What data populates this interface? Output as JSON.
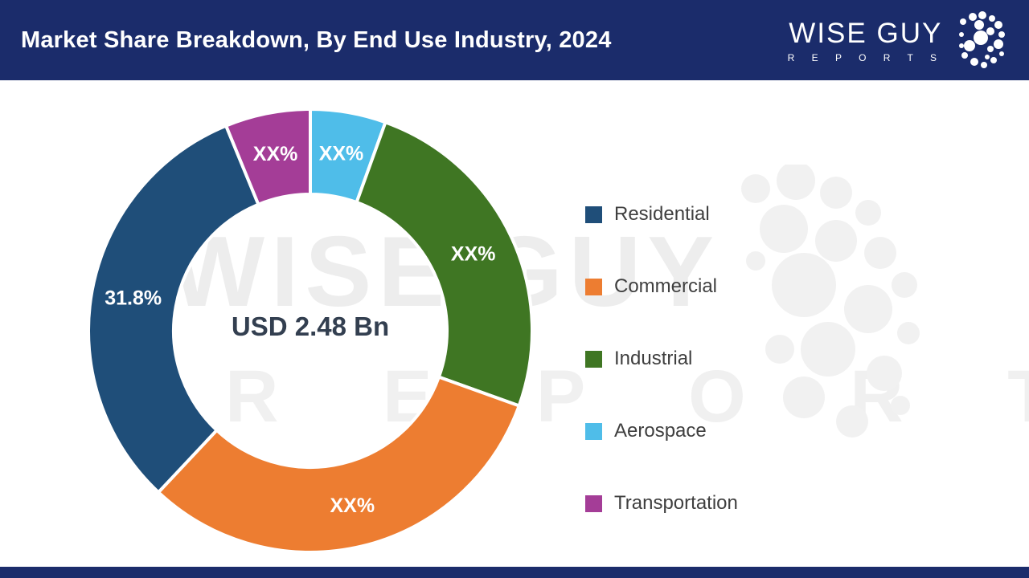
{
  "header": {
    "title": "Market Share Breakdown, By End Use Industry, 2024",
    "logo": {
      "name_line": "WISE GUY",
      "sub_line": "R E P O R T S"
    }
  },
  "watermark": {
    "line1": "WISE GUY",
    "line2": "R E P O R T S"
  },
  "chart_data": {
    "type": "pie",
    "subtype": "donut",
    "title": "Market Share Breakdown, By End Use Industry, 2024",
    "center_label": "USD 2.48 Bn",
    "unit": "percent",
    "legend_position": "right",
    "segments": [
      {
        "label": "Residential",
        "value": 31.8,
        "display_label": "31.8%",
        "color": "#1f4e79"
      },
      {
        "label": "Commercial",
        "value": 31.5,
        "display_label": "XX%",
        "color": "#ed7d31"
      },
      {
        "label": "Industrial",
        "value": 25.0,
        "display_label": "XX%",
        "color": "#3f7623"
      },
      {
        "label": "Aerospace",
        "value": 5.5,
        "display_label": "XX%",
        "color": "#4fbde9"
      },
      {
        "label": "Transportation",
        "value": 6.2,
        "display_label": "XX%",
        "color": "#a43d97"
      }
    ],
    "draw_order_clockwise_from_top": [
      3,
      2,
      1,
      0,
      4
    ]
  },
  "colors": {
    "header_bg": "#1b2c6b",
    "center_text": "#333f50",
    "legend_text": "#3f3f3f",
    "segment_label_text": "#ffffff"
  }
}
